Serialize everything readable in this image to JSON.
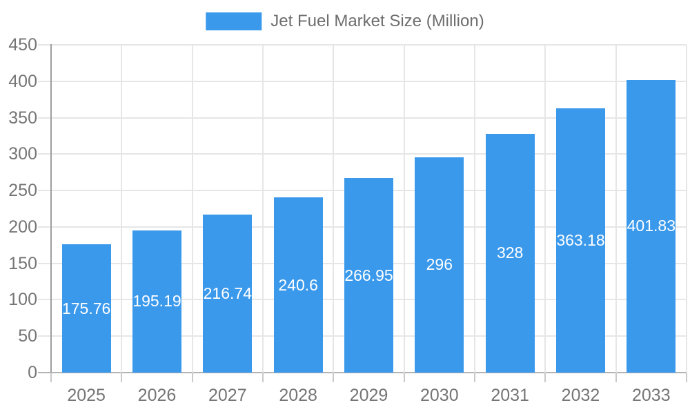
{
  "chart_data": {
    "type": "bar",
    "title": "Jet Fuel Market Size (Million)",
    "legend": {
      "label": "Jet Fuel Market Size (Million)",
      "position": "top"
    },
    "categories": [
      "2025",
      "2026",
      "2027",
      "2028",
      "2029",
      "2030",
      "2031",
      "2032",
      "2033"
    ],
    "values": [
      175.76,
      195.19,
      216.74,
      240.6,
      266.95,
      296,
      328,
      363.18,
      401.83
    ],
    "value_labels": [
      "175.76",
      "195.19",
      "216.74",
      "240.6",
      "266.95",
      "296",
      "328",
      "363.18",
      "401.83"
    ],
    "xlabel": "",
    "ylabel": "",
    "ylim": [
      0,
      450
    ],
    "yticks": [
      0,
      50,
      100,
      150,
      200,
      250,
      300,
      350,
      400,
      450
    ],
    "grid": true,
    "colors": {
      "bar": "#3B99EC",
      "value_text": "#FFFFFF",
      "axis_text": "#757575",
      "legend_text": "#6E6E6E",
      "gridline": "#E6E6E6",
      "y_axis_line": "#9E9E9E",
      "baseline": "#B3B3B3",
      "x_tick": "#C9C9C9"
    }
  }
}
